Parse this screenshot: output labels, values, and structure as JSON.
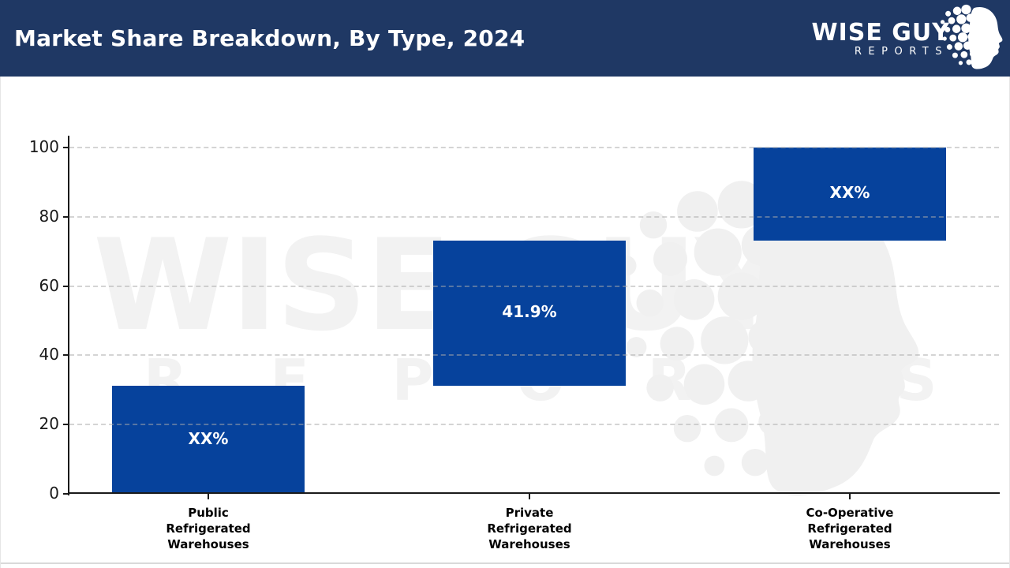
{
  "header": {
    "title": "Market Share Breakdown, By Type, 2024",
    "logo": {
      "wordmark": "WISE GUY",
      "subtext": "REPORTS"
    }
  },
  "watermark": {
    "wordmark": "WISE GUY",
    "subtext": "R E P O R T S"
  },
  "chart_data": {
    "type": "bar",
    "variant": "waterfall",
    "title": "Market Share Breakdown, By Type, 2024",
    "categories": [
      "Public Refrigerated Warehouses",
      "Private Refrigerated Warehouses",
      "Co-Operative Refrigerated Warehouses"
    ],
    "categories_multiline": [
      "Public\nRefrigerated\nWarehouses",
      "Private\nRefrigerated\nWarehouses",
      "Co-Operative\nRefrigerated\nWarehouses"
    ],
    "bars": [
      {
        "category": "Public Refrigerated Warehouses",
        "start": 0,
        "end": 31.2,
        "label": "XX%"
      },
      {
        "category": "Private Refrigerated Warehouses",
        "start": 31.2,
        "end": 73.1,
        "value": 41.9,
        "label": "41.9%"
      },
      {
        "category": "Co-Operative Refrigerated Warehouses",
        "start": 73.1,
        "end": 100,
        "label": "XX%"
      }
    ],
    "ylim": [
      0,
      100
    ],
    "yticks": [
      0,
      20,
      40,
      60,
      80,
      100
    ],
    "grid": "horizontal-dashed",
    "legend": "none",
    "bar_color": "#06429c",
    "xlabel": "",
    "ylabel": ""
  },
  "colors": {
    "header_bg": "#1f3864",
    "bar": "#06429c",
    "grid": "#d9d9d9",
    "axis": "#1a1a1a",
    "watermark": "#f2f2f2",
    "footer_line": "#d9d9d9"
  }
}
